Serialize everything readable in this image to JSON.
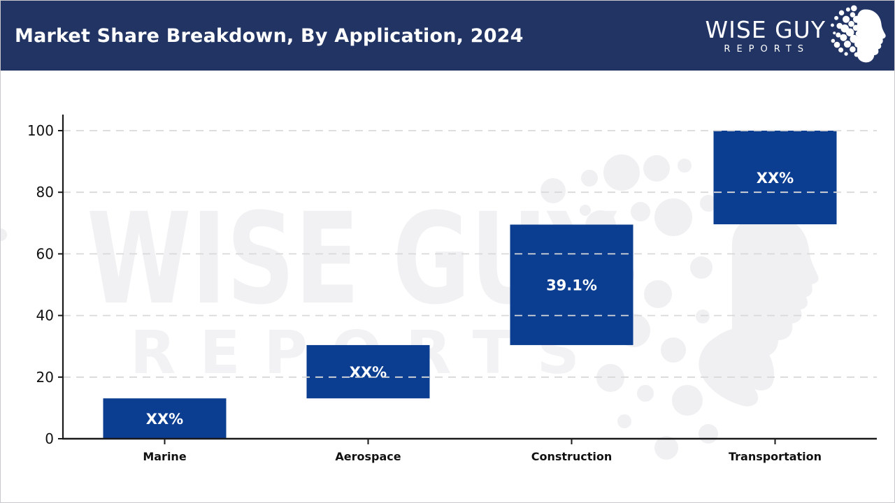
{
  "header": {
    "title": "Market Share Breakdown, By Application, 2024",
    "logo": {
      "wordmark": "WISE GUY",
      "subtitle": "REPORTS"
    }
  },
  "watermark": {
    "line1": "WISE GUY",
    "line2": "REPORTS"
  },
  "chart_data": {
    "type": "bar",
    "subtype": "waterfall",
    "title": "Market Share Breakdown, By Application, 2024",
    "categories": [
      "Marine",
      "Aerospace",
      "Construction",
      "Transportation"
    ],
    "segments": [
      {
        "category": "Marine",
        "start": 0,
        "end": 13.1,
        "value": 13.1,
        "label": "XX%"
      },
      {
        "category": "Aerospace",
        "start": 13.1,
        "end": 30.4,
        "value": 17.3,
        "label": "XX%"
      },
      {
        "category": "Construction",
        "start": 30.4,
        "end": 69.5,
        "value": 39.1,
        "label": "39.1%"
      },
      {
        "category": "Transportation",
        "start": 69.6,
        "end": 100,
        "value": 30.4,
        "label": "XX%"
      }
    ],
    "xlabel": "",
    "ylabel": "",
    "ylim": [
      0,
      100
    ],
    "yticks": [
      0,
      20,
      40,
      60,
      80,
      100
    ],
    "grid": "horizontal-dashed",
    "legend": "none",
    "colors": {
      "bar": "#0b3d91",
      "bar_label": "#ffffff",
      "grid": "#d9d9d9",
      "axis": "#1a1a1a",
      "tick_label": "#111111",
      "header_bg": "#213463",
      "watermark": "#f0f0f3"
    }
  }
}
